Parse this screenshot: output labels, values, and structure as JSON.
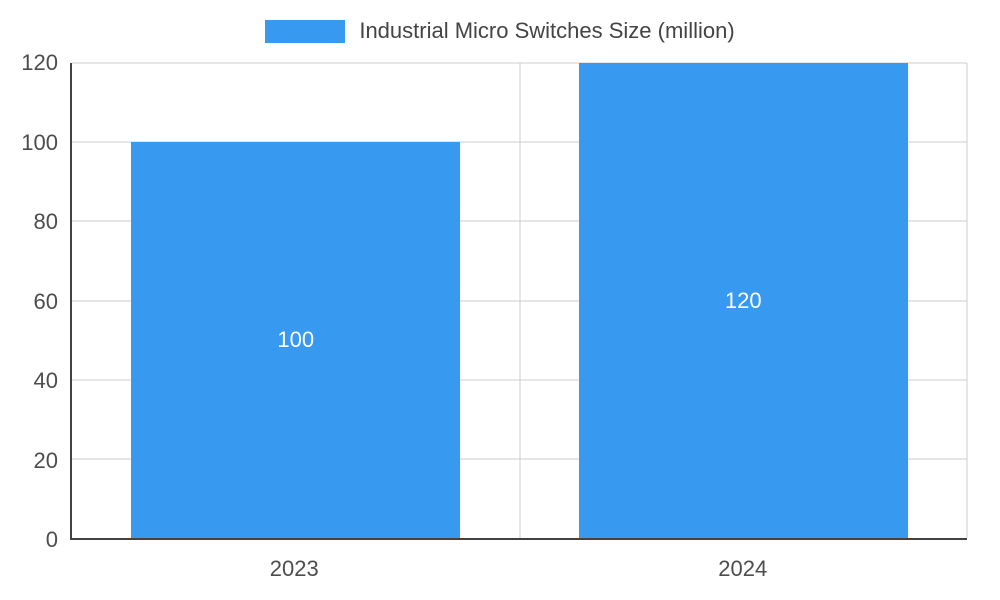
{
  "colors": {
    "bar": "#3899F0",
    "grid": "#cccccc",
    "axis": "#424242",
    "tick_text": "#4d4d4d",
    "legend_text": "#444444",
    "value_label": "#ffffff",
    "background": "#ffffff"
  },
  "legend": {
    "label": "Industrial Micro Switches Size (million)"
  },
  "chart_data": {
    "type": "bar",
    "title": "Industrial Micro Switches Size (million)",
    "categories": [
      "2023",
      "2024"
    ],
    "values": [
      100,
      120
    ],
    "series": [
      {
        "name": "Industrial Micro Switches Size (million)",
        "values": [
          100,
          120
        ]
      }
    ],
    "data_labels": [
      "100",
      "120"
    ],
    "xlabel": "",
    "ylabel": "",
    "ylim": [
      0,
      120
    ],
    "yticks": [
      0,
      20,
      40,
      60,
      80,
      100,
      120
    ],
    "grid": true,
    "legend_position": "top"
  }
}
